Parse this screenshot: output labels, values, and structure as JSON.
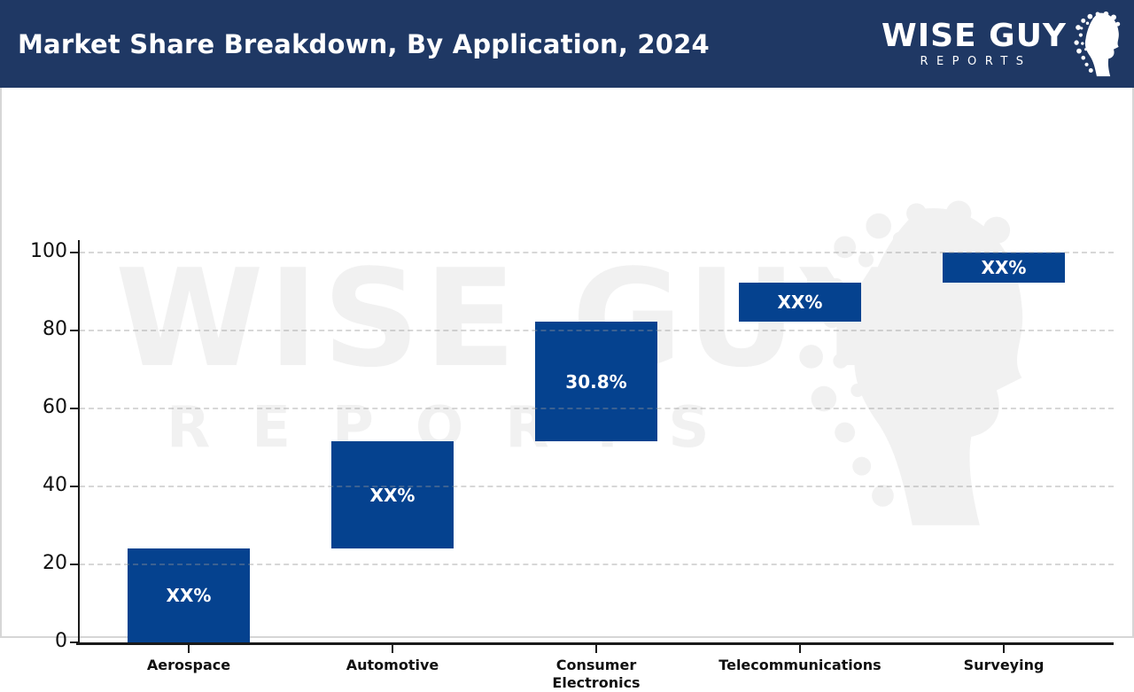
{
  "header": {
    "title": "Market Share Breakdown, By Application, 2024",
    "logo": {
      "line1": "WISE GUY",
      "line2": "REPORTS"
    }
  },
  "watermark": {
    "line1": "WISE GUY",
    "line2": "REPORTS"
  },
  "colors": {
    "header_bg": "#1f3864",
    "bar": "#05428f",
    "bar_label_text": "#ffffff",
    "axis": "#1a1a1a",
    "grid_on_white": "#e0e0e0",
    "watermark": "#f1f1f1",
    "title_text": "#ffffff"
  },
  "chart_data": {
    "type": "bar",
    "subtype": "floating-waterfall",
    "title": "Market Share Breakdown, By Application, 2024",
    "xlabel": "",
    "ylabel": "",
    "ylim": [
      0,
      100
    ],
    "yticks": [
      0,
      20,
      40,
      60,
      80,
      100
    ],
    "grid": "horizontal-dashed",
    "legend": "none",
    "categories": [
      "Aerospace",
      "Automotive",
      "Consumer Electronics",
      "Telecommunications",
      "Surveying"
    ],
    "category_label_lines": [
      [
        "Aerospace"
      ],
      [
        "Automotive"
      ],
      [
        "Consumer",
        "Electronics"
      ],
      [
        "Telecommunications"
      ],
      [
        "Surveying"
      ]
    ],
    "series": [
      {
        "name": "Market Share",
        "segments": [
          {
            "category": "Aerospace",
            "start": 0,
            "end": 24,
            "value_label": "XX%"
          },
          {
            "category": "Automotive",
            "start": 24,
            "end": 51.5,
            "value_label": "XX%"
          },
          {
            "category": "Consumer Electronics",
            "start": 51.5,
            "end": 82.3,
            "value_label": "30.8%"
          },
          {
            "category": "Telecommunications",
            "start": 82.3,
            "end": 92.3,
            "value_label": "XX%"
          },
          {
            "category": "Surveying",
            "start": 92.3,
            "end": 100,
            "value_label": "XX%"
          }
        ]
      }
    ]
  }
}
